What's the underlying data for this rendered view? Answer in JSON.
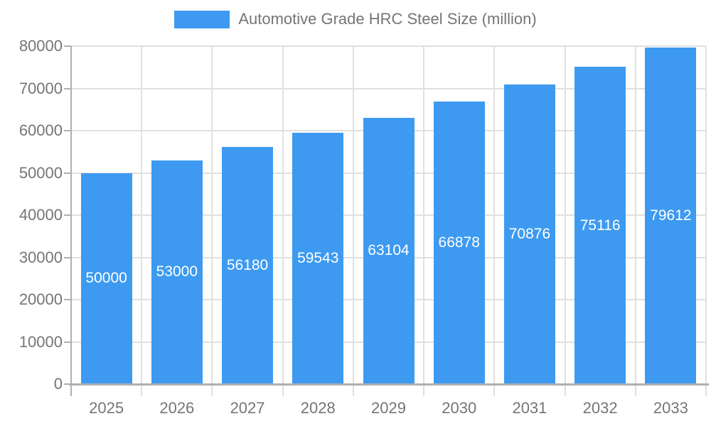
{
  "chart_data": {
    "type": "bar",
    "title": "Automotive Grade HRC Steel Size (million)",
    "categories": [
      "2025",
      "2026",
      "2027",
      "2028",
      "2029",
      "2030",
      "2031",
      "2032",
      "2033"
    ],
    "values": [
      50000,
      53000,
      56180,
      59543,
      63104,
      66878,
      70876,
      75116,
      79612
    ],
    "xlabel": "",
    "ylabel": "",
    "ylim": [
      0,
      80000
    ],
    "ytick_step": 10000,
    "ytick_labels": [
      "0",
      "10000",
      "20000",
      "30000",
      "40000",
      "50000",
      "60000",
      "70000",
      "80000"
    ],
    "grid": true,
    "legend_position": "top-center",
    "value_labels": "inside-middle",
    "colors": {
      "bar": "#3D9AF0",
      "value_label": "#ffffff",
      "axis_text": "#757575",
      "grid_line": "#e0e0e0",
      "axis_line": "#b0b0b0",
      "background": "#ffffff"
    }
  }
}
